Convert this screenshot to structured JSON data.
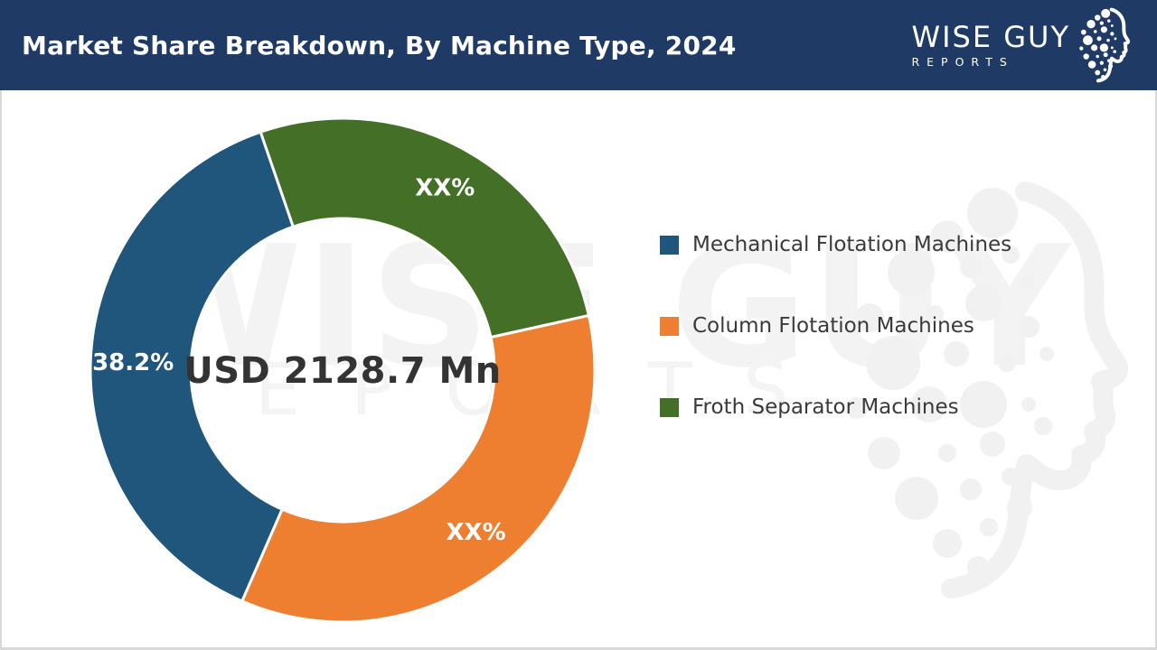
{
  "header": {
    "title": "Market Share Breakdown, By Machine Type, 2024",
    "logo": {
      "brand": "WISE GUY",
      "sub": "REPORTS"
    }
  },
  "watermark": {
    "big": "WISE GUY",
    "small": "REPORTS"
  },
  "chart_data": {
    "type": "pie",
    "donut": true,
    "title": "Market Share Breakdown, By Machine Type, 2024",
    "center_label": "USD 2128.7 Mn",
    "start_angle_deg": -19,
    "legend_position": "right",
    "slices": [
      {
        "name": "Froth Separator Machines",
        "label": "XX%",
        "share_pct": 26.8,
        "color": "#437026"
      },
      {
        "name": "Column Flotation Machines",
        "label": "XX%",
        "share_pct": 35.0,
        "color": "#EE7E30"
      },
      {
        "name": "Mechanical Flotation Machines",
        "label": "38.2%",
        "share_pct": 38.2,
        "color": "#20567B"
      }
    ]
  },
  "legend": {
    "items": [
      {
        "label": "Mechanical Flotation Machines",
        "color": "#20567B"
      },
      {
        "label": "Column Flotation Machines",
        "color": "#EE7E30"
      },
      {
        "label": "Froth Separator Machines",
        "color": "#437026"
      }
    ]
  }
}
